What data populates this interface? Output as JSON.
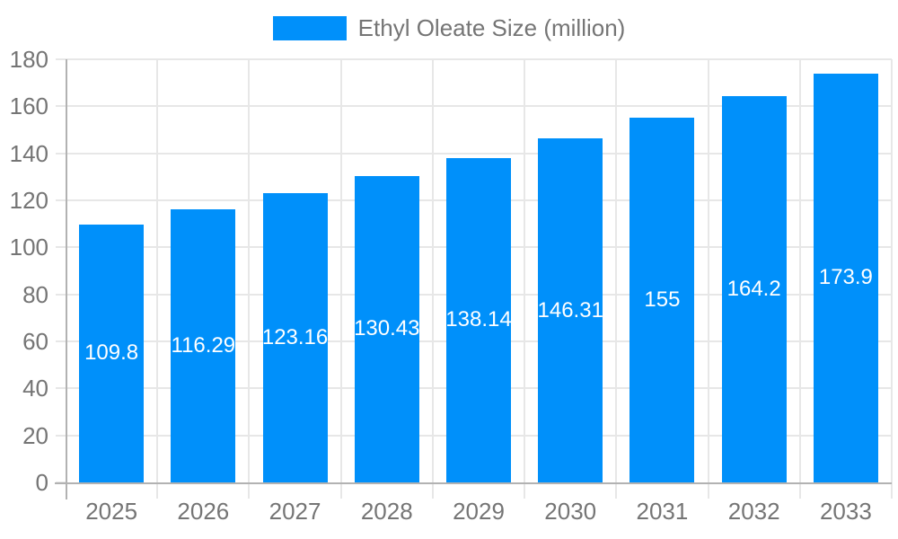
{
  "legend": {
    "label": "Ethyl Oleate Size (million)"
  },
  "chart_data": {
    "type": "bar",
    "title": "Ethyl Oleate Size (million)",
    "categories": [
      "2025",
      "2026",
      "2027",
      "2028",
      "2029",
      "2030",
      "2031",
      "2032",
      "2033"
    ],
    "values": [
      109.8,
      116.29,
      123.16,
      130.43,
      138.14,
      146.31,
      155,
      164.2,
      173.9
    ],
    "xlabel": "",
    "ylabel": "",
    "ylim": [
      0,
      180
    ],
    "yticks": [
      0,
      20,
      40,
      60,
      80,
      100,
      120,
      140,
      160,
      180
    ],
    "grid": true,
    "legend_position": "top",
    "value_labels_inside_bars": true,
    "colors": {
      "bar": "#0090fa",
      "text": "#757575",
      "grid": "#e7e7e7",
      "axis": "#b2b2b2",
      "value_label": "#ffffff",
      "background": "#ffffff"
    }
  }
}
